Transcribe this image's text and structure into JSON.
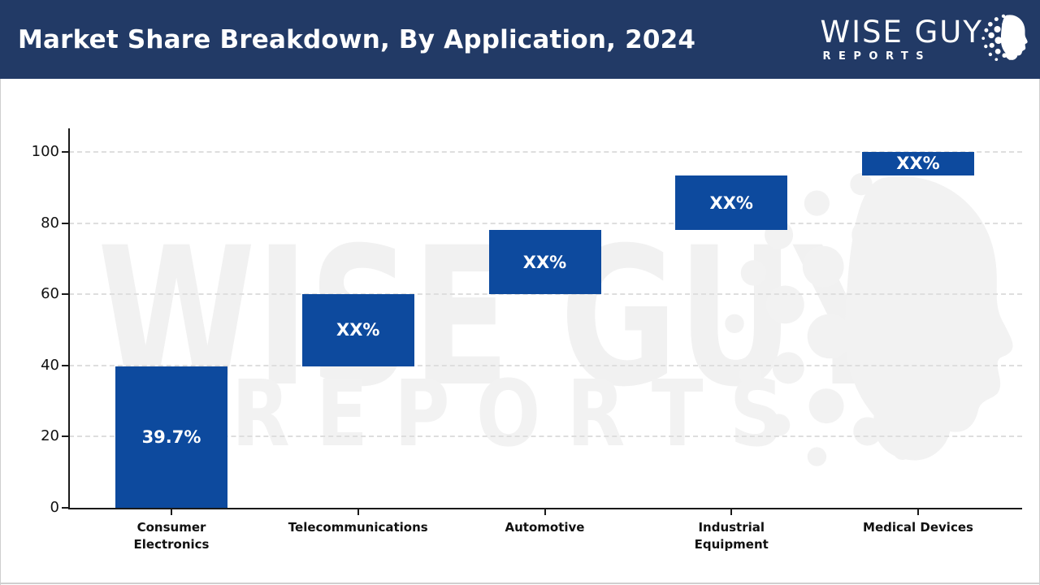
{
  "header": {
    "title": "Market Share Breakdown, By Application, 2024",
    "logo": {
      "wordmark": "WISE GUY",
      "subtext": "REPORTS"
    }
  },
  "watermark": {
    "wordmark": "WISE GUY",
    "subtext": "R E P O R T S"
  },
  "chart_data": {
    "type": "bar",
    "subtype": "waterfall",
    "title": "Market Share Breakdown, By Application, 2024",
    "categories": [
      "Consumer Electronics",
      "Telecommunications",
      "Automotive",
      "Industrial Equipment",
      "Medical Devices"
    ],
    "tick_label_lines": [
      [
        "Consumer",
        "Electronics"
      ],
      [
        "Telecommunications"
      ],
      [
        "Automotive"
      ],
      [
        "Industrial",
        "Equipment"
      ],
      [
        "Medical Devices"
      ]
    ],
    "bars": [
      {
        "category": "Consumer Electronics",
        "base": 0,
        "top": 39.7,
        "value_label": "39.7%"
      },
      {
        "category": "Telecommunications",
        "base": 39.7,
        "top": 60,
        "value_label": "XX%"
      },
      {
        "category": "Automotive",
        "base": 60,
        "top": 78,
        "value_label": "XX%"
      },
      {
        "category": "Industrial Equipment",
        "base": 78,
        "top": 93.4,
        "value_label": "XX%"
      },
      {
        "category": "Medical Devices",
        "base": 93.4,
        "top": 100,
        "value_label": "XX%"
      }
    ],
    "xlabel": "",
    "ylabel": "",
    "ylim": [
      0,
      106
    ],
    "yticks": [
      0,
      20,
      40,
      60,
      80,
      100
    ],
    "grid": {
      "horizontal": true,
      "style": "dashed"
    },
    "legend": null,
    "colors": {
      "bar": "#0d4a9e",
      "bar_label": "#ffffff",
      "axis": "#1a1a1a",
      "gridline": "#dedede"
    }
  },
  "theme": {
    "header_bg": "#223a66",
    "header_text": "#ffffff",
    "canvas_bg": "#ffffff",
    "watermark_color": "#f1f1f1",
    "edge_border": "#cfcfcf"
  }
}
